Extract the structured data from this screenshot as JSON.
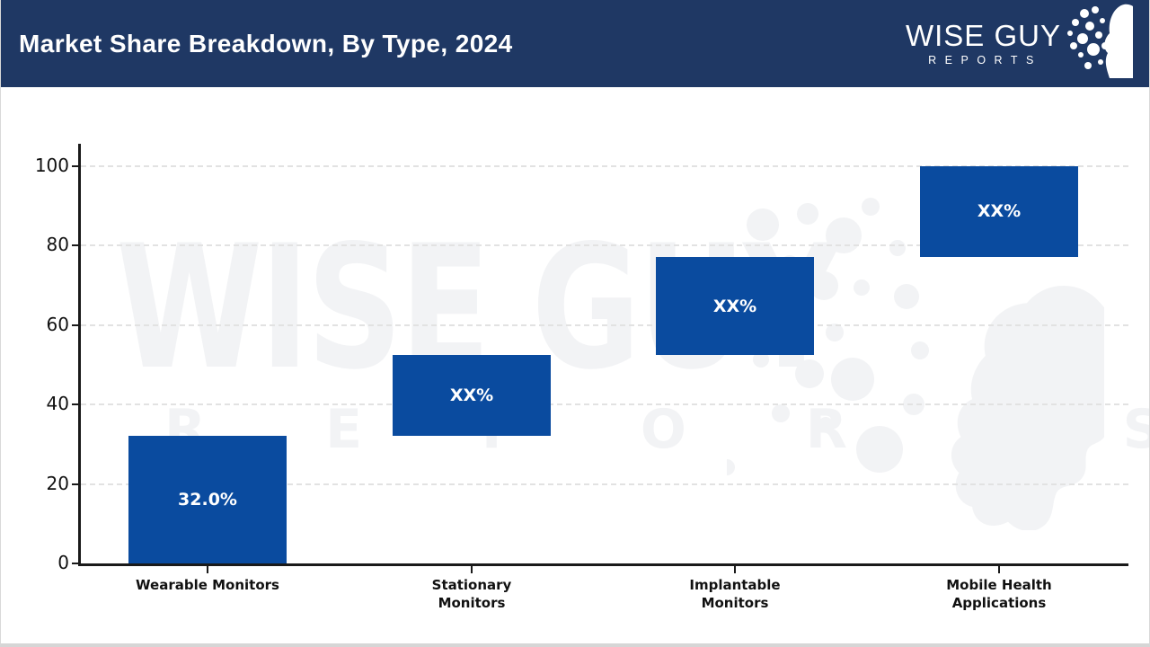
{
  "header": {
    "title": "Market Share Breakdown, By Type, 2024",
    "logo": {
      "brand_top": "WISE GUY",
      "brand_bottom": "REPORTS",
      "icon": "dotted-head-profile"
    },
    "background_color": "#1F3864"
  },
  "watermark": {
    "line1": "WISE GUY",
    "line2": "R E P O R T S",
    "icon": "dotted-head-profile",
    "color": "#F2F3F5"
  },
  "chart_data": {
    "type": "bar",
    "subtype": "floating-waterfall",
    "title": "Market Share Breakdown, By Type, 2024",
    "categories": [
      "Wearable Monitors",
      "Stationary\nMonitors",
      "Implantable\nMonitors",
      "Mobile Health\nApplications"
    ],
    "segments": [
      {
        "category": "Wearable Monitors",
        "start": 0,
        "end": 32,
        "label": "32.0%"
      },
      {
        "category": "Stationary Monitors",
        "start": 32,
        "end": 52.5,
        "label": "XX%"
      },
      {
        "category": "Implantable Monitors",
        "start": 52.5,
        "end": 77,
        "label": "XX%"
      },
      {
        "category": "Mobile Health Applications",
        "start": 77,
        "end": 100,
        "label": "XX%"
      }
    ],
    "yticks": [
      0,
      20,
      40,
      60,
      80,
      100
    ],
    "ylim": [
      0,
      105
    ],
    "xlabel": "",
    "ylabel": "",
    "grid": "horizontal-dashed",
    "legend": "none",
    "bar_color": "#0A4B9F",
    "bar_label_color": "#FFFFFF",
    "axis_color": "#1A1A1A"
  }
}
